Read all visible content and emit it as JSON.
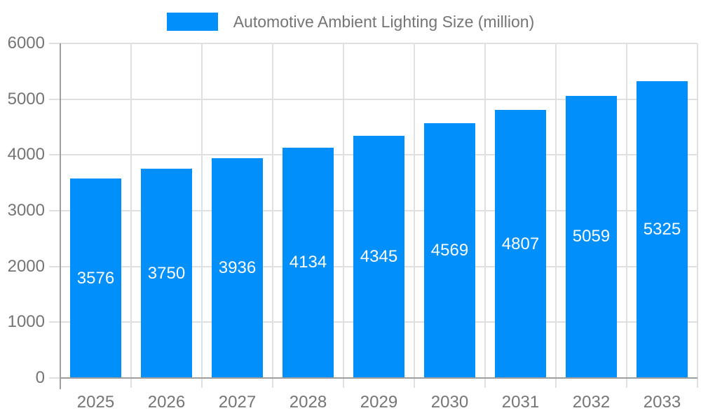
{
  "chart_data": {
    "type": "bar",
    "title": "",
    "legend": {
      "label": "Automotive Ambient Lighting Size (million)",
      "position": "top"
    },
    "categories": [
      "2025",
      "2026",
      "2027",
      "2028",
      "2029",
      "2030",
      "2031",
      "2032",
      "2033"
    ],
    "series": [
      {
        "name": "Automotive Ambient Lighting Size (million)",
        "values": [
          3576,
          3750,
          3936,
          4134,
          4345,
          4569,
          4807,
          5059,
          5325
        ]
      }
    ],
    "xlabel": "",
    "ylabel": "",
    "ylim": [
      0,
      6000
    ],
    "yticks": [
      0,
      1000,
      2000,
      3000,
      4000,
      5000,
      6000
    ],
    "grid": true,
    "data_labels": true,
    "colors": {
      "bar": "#008ffb",
      "data_label": "#ffffff",
      "axis_label": "#757575",
      "legend_text": "#757575",
      "gridline": "#e0e0e0",
      "axis_line": "#9e9e9e",
      "background": "#ffffff"
    }
  }
}
